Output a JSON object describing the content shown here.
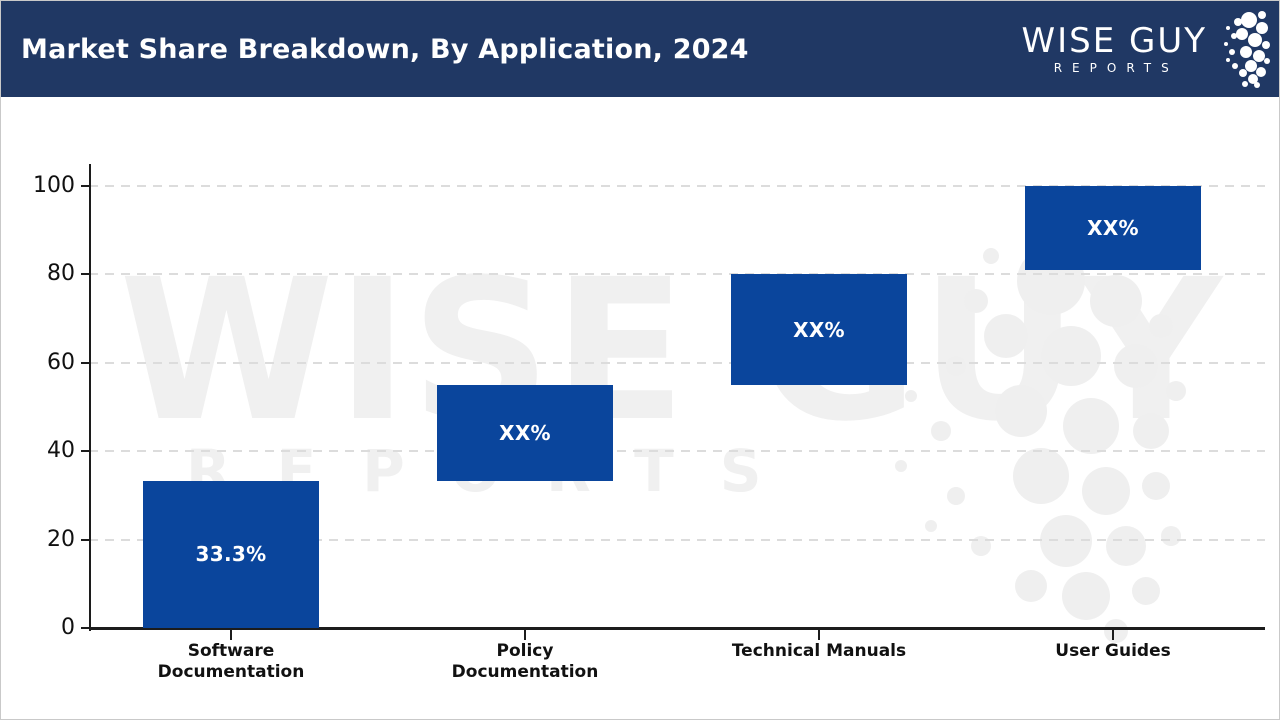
{
  "header": {
    "title": "Market Share Breakdown, By Application, 2024",
    "logo": {
      "wordmark": "WISE GUY",
      "subtext": "REPORTS"
    }
  },
  "watermark": {
    "wordmark": "WISE GUY",
    "subtext": "REPORTS"
  },
  "colors": {
    "header_bg": "#203864",
    "bar": "#0a459c",
    "bar_label_text": "#ffffff",
    "grid": "#dcdcdc",
    "axis": "#1c1c1c",
    "watermark": "#f0f0f0"
  },
  "chart_data": {
    "type": "bar",
    "subtype": "floating-waterfall",
    "title": "Market Share Breakdown, By Application, 2024",
    "xlabel": "",
    "ylabel": "",
    "ylim": [
      0,
      100
    ],
    "yticks": [
      0,
      20,
      40,
      60,
      80,
      100
    ],
    "grid": "horizontal-dashed",
    "legend": "none",
    "categories": [
      "Software Documentation",
      "Policy Documentation",
      "Technical Manuals",
      "User Guides"
    ],
    "categories_lines": [
      [
        "Software",
        "Documentation"
      ],
      [
        "Policy",
        "Documentation"
      ],
      [
        "Technical Manuals"
      ],
      [
        "User Guides"
      ]
    ],
    "segments": [
      {
        "category": "Software Documentation",
        "start": 0,
        "end": 33.3,
        "label": "33.3%"
      },
      {
        "category": "Policy Documentation",
        "start": 33.3,
        "end": 55,
        "label": "XX%"
      },
      {
        "category": "Technical Manuals",
        "start": 55,
        "end": 80,
        "label": "XX%"
      },
      {
        "category": "User Guides",
        "start": 81,
        "end": 100,
        "label": "XX%"
      }
    ]
  }
}
